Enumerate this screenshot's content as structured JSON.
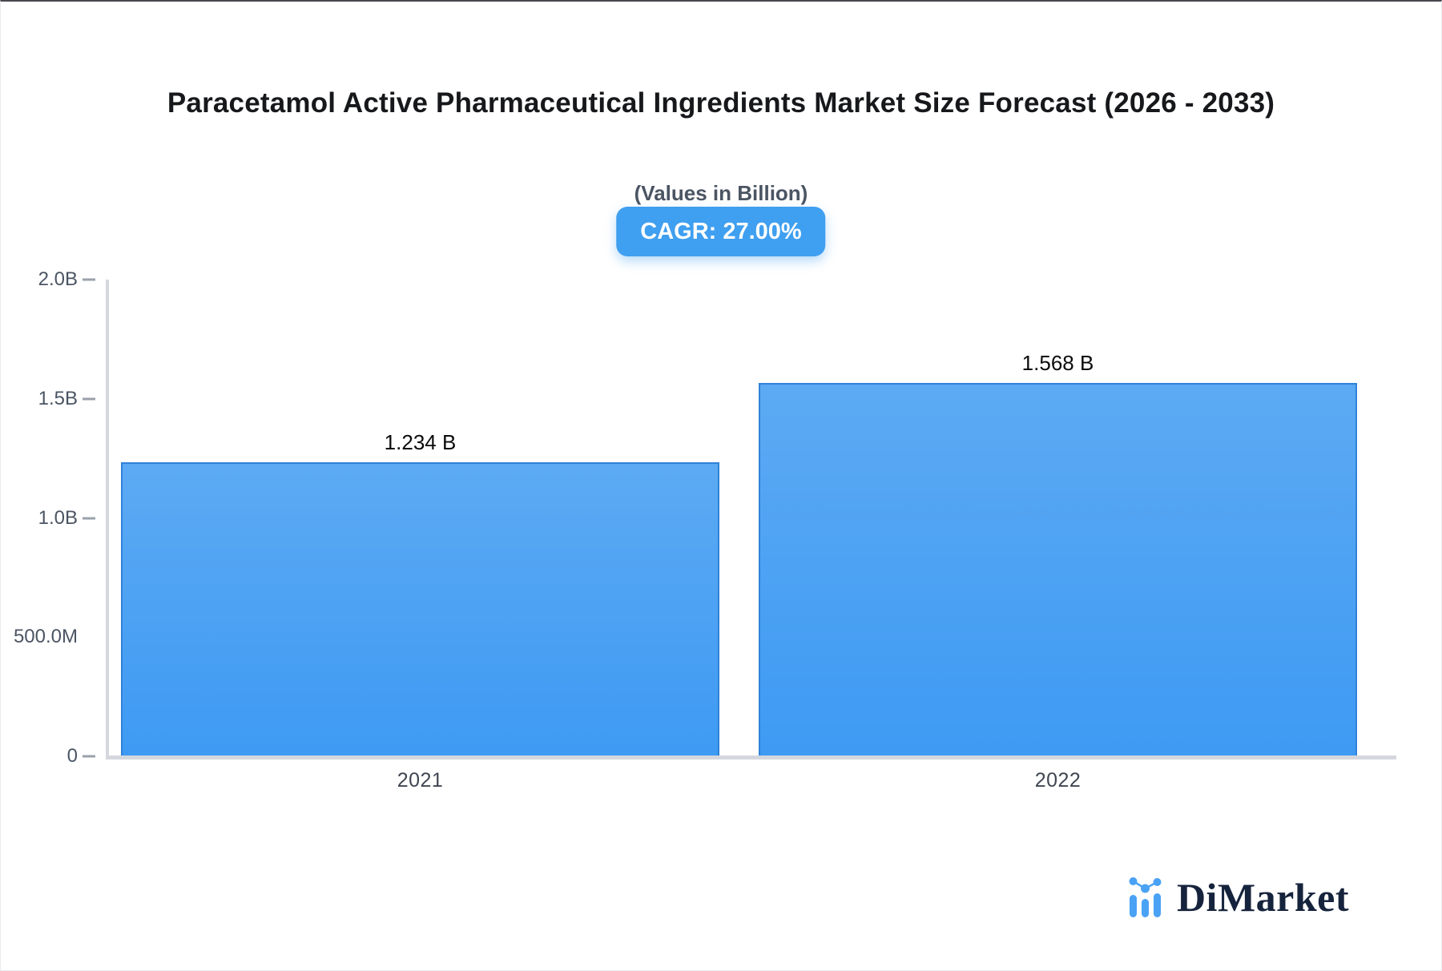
{
  "header": {
    "title": "Paracetamol Active Pharmaceutical Ingredients Market Size Forecast (2026 - 2033)",
    "subtitle": "(Values in Billion)",
    "cagr_badge": "CAGR: 27.00%"
  },
  "chart_data": {
    "type": "bar",
    "title": "Paracetamol Active Pharmaceutical Ingredients Market Size Forecast (2026 - 2033)",
    "subtitle": "(Values in Billion)",
    "cagr": "27.00%",
    "categories": [
      "2021",
      "2022"
    ],
    "values": [
      1.234,
      1.568
    ],
    "unit": "B",
    "bar_labels": [
      "1.234 B",
      "1.568 B"
    ],
    "ylim": [
      0,
      2.0
    ],
    "yticks": [
      {
        "label": "2.0B",
        "value": 2.0,
        "dash": true
      },
      {
        "label": "1.5B",
        "value": 1.5,
        "dash": true
      },
      {
        "label": "1.0B",
        "value": 1.0,
        "dash": true
      },
      {
        "label": "500.0M",
        "value": 0.5,
        "dash": false
      },
      {
        "label": "0",
        "value": 0.0,
        "dash": true
      }
    ],
    "grid": false,
    "legend": "none",
    "bar_color_top": "#5caaf3",
    "bar_color_bottom": "#3e9af3",
    "bar_border_color": "#2f82d9"
  },
  "branding": {
    "logo_text": "DiMarket",
    "logo_icon": "bar-line-chart-icon",
    "logo_icon_color": "#4aa2f5",
    "logo_text_color": "#16233c"
  },
  "colors": {
    "badge_bg": "#3f9ff0",
    "axis": "#d4d7dd",
    "tick": "#9aa1ab",
    "axis_label": "#4b5563"
  }
}
